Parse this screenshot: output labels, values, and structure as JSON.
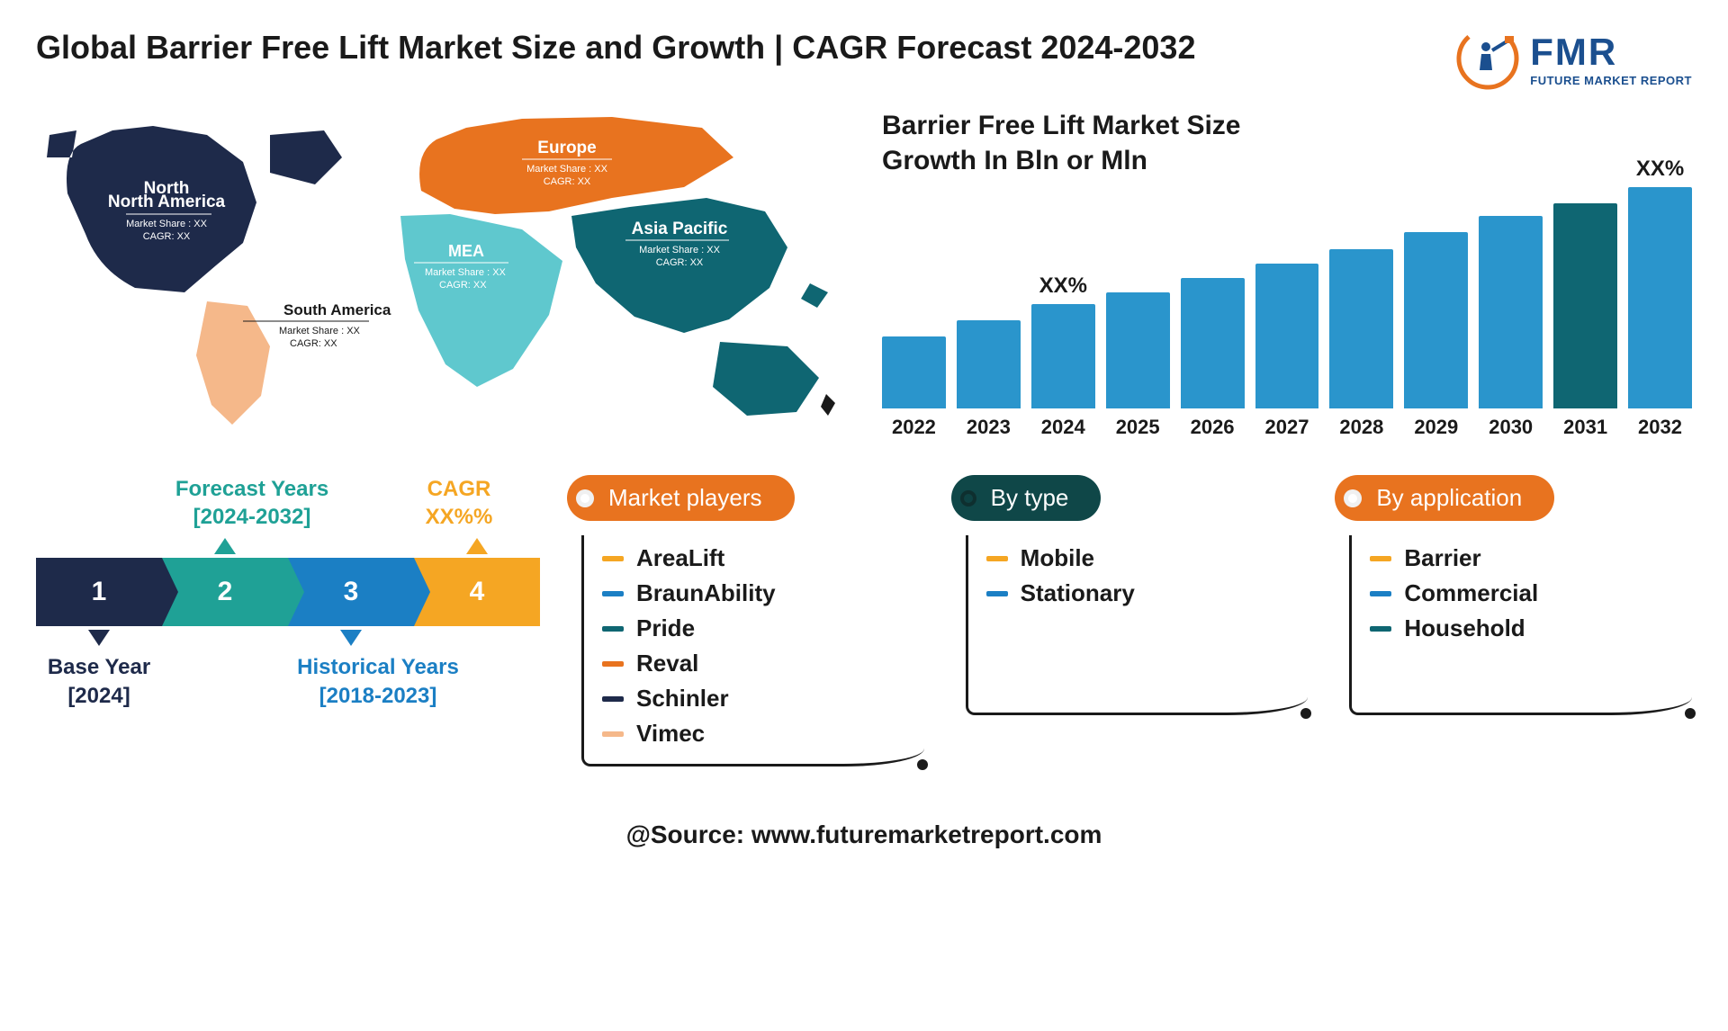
{
  "title": "Global Barrier Free Lift Market Size and Growth | CAGR Forecast 2024-2032",
  "logo": {
    "main": "FMR",
    "sub": "FUTURE MARKET REPORT",
    "icon_color": "#e8731f",
    "text_color": "#1b4f8f"
  },
  "colors": {
    "na": "#1e2a4a",
    "sa": "#f5b88a",
    "eu": "#e8731f",
    "mea": "#5fc8ce",
    "ap": "#0f6672",
    "bar_main": "#2a95cc",
    "bar_alt": "#0f6672",
    "text": "#1a1a1a",
    "bg": "#ffffff"
  },
  "map": {
    "regions": [
      {
        "key": "na",
        "name": "North America",
        "share": "Market Share : XX",
        "cagr": "CAGR: XX",
        "color": "#1e2a4a"
      },
      {
        "key": "sa",
        "name": "South America",
        "share": "Market Share : XX",
        "cagr": "CAGR: XX",
        "color": "#f5b88a"
      },
      {
        "key": "eu",
        "name": "Europe",
        "share": "Market Share : XX",
        "cagr": "CAGR: XX",
        "color": "#e8731f"
      },
      {
        "key": "mea",
        "name": "MEA",
        "share": "Market Share : XX",
        "cagr": "CAGR: XX",
        "color": "#5fc8ce"
      },
      {
        "key": "ap",
        "name": "Asia Pacific",
        "share": "Market Share : XX",
        "cagr": "CAGR: XX",
        "color": "#0f6672"
      }
    ]
  },
  "chart": {
    "title": "Barrier Free Lift Market Size Growth In Bln or Mln",
    "type": "bar",
    "years": [
      "2022",
      "2023",
      "2024",
      "2025",
      "2026",
      "2027",
      "2028",
      "2029",
      "2030",
      "2031",
      "2032"
    ],
    "values": [
      90,
      110,
      130,
      145,
      162,
      180,
      198,
      220,
      240,
      255,
      275
    ],
    "bar_colors": [
      "#2a95cc",
      "#2a95cc",
      "#2a95cc",
      "#2a95cc",
      "#2a95cc",
      "#2a95cc",
      "#2a95cc",
      "#2a95cc",
      "#2a95cc",
      "#0f6672",
      "#2a95cc"
    ],
    "bar_width": 0.78,
    "gap": 12,
    "ymax": 280,
    "annotations": [
      {
        "index": 2,
        "text": "XX%"
      },
      {
        "index": 10,
        "text": "XX%"
      }
    ],
    "label_fontsize": 22,
    "annotation_fontsize": 24
  },
  "timeline": {
    "forecast": {
      "label": "Forecast Years",
      "range": "[2024-2032]",
      "color": "#1fa196"
    },
    "cagr": {
      "label": "CAGR",
      "value": "XX%%",
      "color": "#f5a623"
    },
    "base": {
      "label": "Base Year",
      "range": "[2024]",
      "color": "#1e2a4a"
    },
    "historical": {
      "label": "Historical Years",
      "range": "[2018-2023]",
      "color": "#1b7fc4"
    },
    "segments": [
      {
        "num": "1",
        "color": "#1e2a4a"
      },
      {
        "num": "2",
        "color": "#1fa196"
      },
      {
        "num": "3",
        "color": "#1b7fc4"
      },
      {
        "num": "4",
        "color": "#f5a623"
      }
    ]
  },
  "categories": {
    "players": {
      "title": "Market players",
      "pill_color": "#e8731f",
      "items": [
        {
          "name": "AreaLift",
          "dash": "#f5a623"
        },
        {
          "name": "BraunAbility",
          "dash": "#1b7fc4"
        },
        {
          "name": "Pride",
          "dash": "#0f6672"
        },
        {
          "name": "Reval",
          "dash": "#e8731f"
        },
        {
          "name": "Schinler",
          "dash": "#1e2a4a"
        },
        {
          "name": "Vimec",
          "dash": "#f5b88a"
        }
      ]
    },
    "type": {
      "title": "By type",
      "pill_color": "#0f4748",
      "items": [
        {
          "name": "Mobile",
          "dash": "#f5a623"
        },
        {
          "name": "Stationary",
          "dash": "#1b7fc4"
        }
      ]
    },
    "application": {
      "title": "By application",
      "pill_color": "#e8731f",
      "items": [
        {
          "name": "Barrier",
          "dash": "#f5a623"
        },
        {
          "name": "Commercial",
          "dash": "#1b7fc4"
        },
        {
          "name": "Household",
          "dash": "#0f6672"
        }
      ]
    }
  },
  "source": "@Source: www.futuremarketreport.com"
}
